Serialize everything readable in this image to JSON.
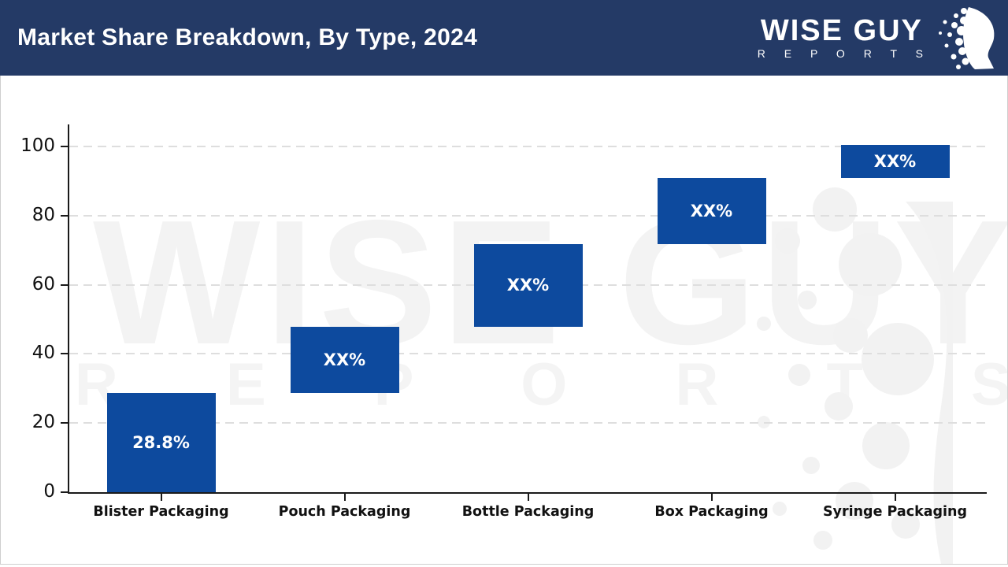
{
  "header": {
    "title": "Market Share Breakdown, By Type, 2024",
    "bg_color": "#243a66",
    "logo": {
      "wordmark": "WISE GUY",
      "subtext": "R E P O R T S"
    }
  },
  "watermark": {
    "line1": "WISE GUY",
    "line2": "R E P O R T S"
  },
  "chart_data": {
    "type": "bar",
    "subtype": "waterfall-floating-bars",
    "title": "Market Share Breakdown, By Type, 2024",
    "categories": [
      "Blister Packaging",
      "Pouch Packaging",
      "Bottle Packaging",
      "Box Packaging",
      "Syringe Packaging"
    ],
    "segments": [
      {
        "category": "Blister Packaging",
        "start": 0,
        "end": 28.8,
        "label": "28.8%"
      },
      {
        "category": "Pouch Packaging",
        "start": 28.8,
        "end": 47.8,
        "label": "XX%"
      },
      {
        "category": "Bottle Packaging",
        "start": 47.8,
        "end": 71.8,
        "label": "XX%"
      },
      {
        "category": "Box Packaging",
        "start": 71.8,
        "end": 91.0,
        "label": "XX%"
      },
      {
        "category": "Syringe Packaging",
        "start": 91.0,
        "end": 100.4,
        "label": "XX%"
      }
    ],
    "yticks": [
      0,
      20,
      40,
      60,
      80,
      100
    ],
    "ylim": [
      0,
      106
    ],
    "xlabel": "",
    "ylabel": "",
    "grid": "horizontal-dashed",
    "legend": "none",
    "bar_color": "#0d4a9e",
    "bar_label_color": "#ffffff",
    "axis_color": "#1a1a1a",
    "gridline_color": "#dedede"
  }
}
